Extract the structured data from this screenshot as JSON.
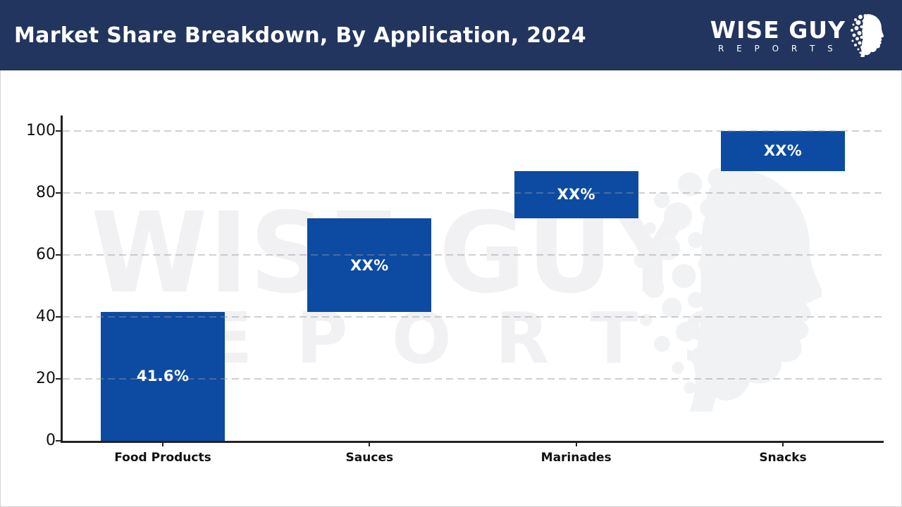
{
  "header": {
    "title": "Market Share Breakdown, By Application, 2024",
    "bg_color": "#22355f",
    "logo": {
      "line1": "WISE GUY",
      "line2": "R E P O R T S",
      "face_icon": "dotted-head-profile"
    }
  },
  "watermark": {
    "line1": "WISE GUY",
    "line2": "REPORTS",
    "face_icon": "dotted-head-profile",
    "color": "#f1f1f3"
  },
  "chart_data": {
    "type": "bar",
    "subtype": "waterfall",
    "title": "Market Share Breakdown, By Application, 2024",
    "categories": [
      "Food Products",
      "Sauces",
      "Marinades",
      "Snacks"
    ],
    "segments": [
      {
        "label": "Food Products",
        "start": 0,
        "end": 41.6,
        "value_label": "41.6%"
      },
      {
        "label": "Sauces",
        "start": 41.6,
        "end": 71.8,
        "value_label": "XX%"
      },
      {
        "label": "Marinades",
        "start": 71.8,
        "end": 87.1,
        "value_label": "XX%"
      },
      {
        "label": "Snacks",
        "start": 87.1,
        "end": 100,
        "value_label": "XX%"
      }
    ],
    "ylim": [
      0,
      105
    ],
    "yticks": [
      0,
      20,
      40,
      60,
      80,
      100
    ],
    "xlabel": "",
    "ylabel": "",
    "grid": "dashed-horizontal-over-bars",
    "legend": "none",
    "bar_color": "#0c4ba1",
    "bar_label_color": "#ffffff",
    "axis_color": "#222222",
    "tick_label_color": "#111111"
  }
}
